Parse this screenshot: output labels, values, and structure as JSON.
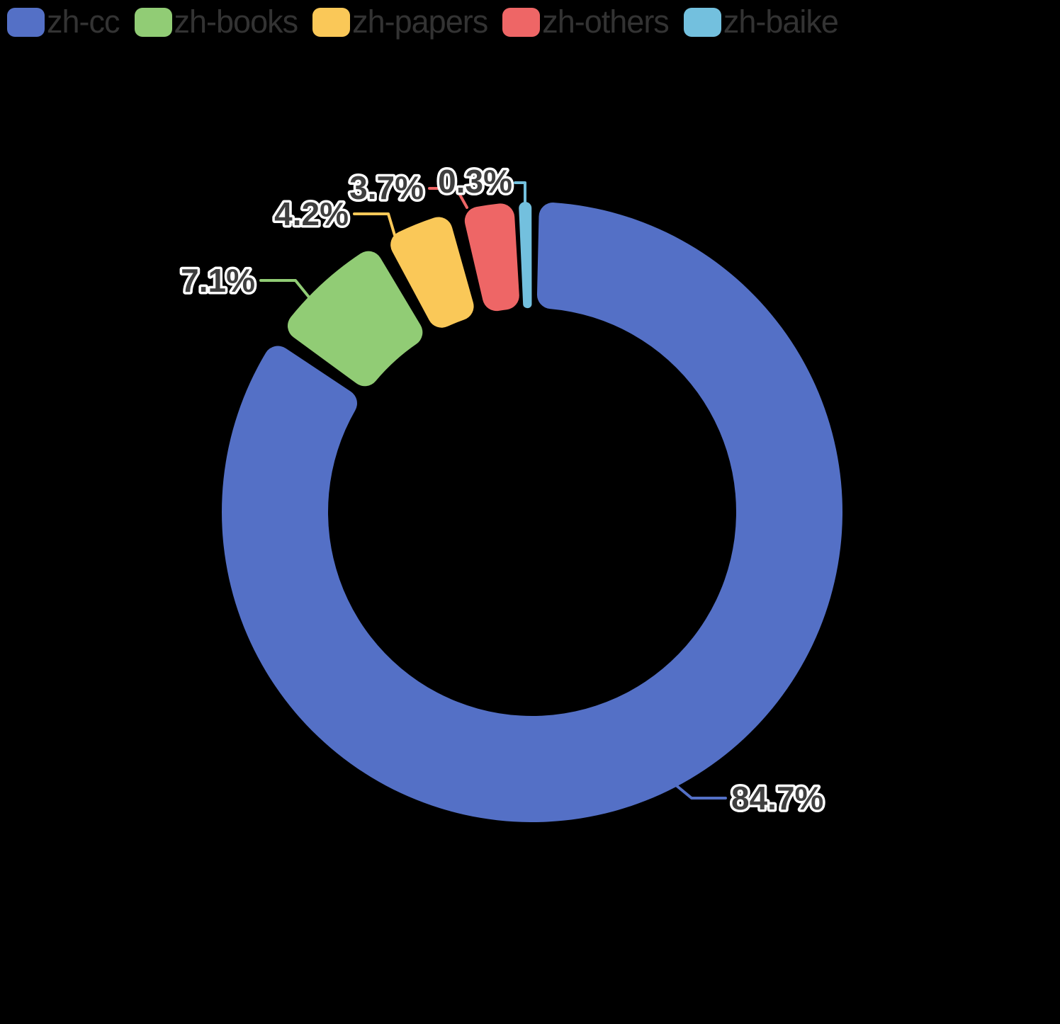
{
  "background": "#000000",
  "legend": {
    "position": "top-left",
    "items": [
      {
        "label": "zh-cc",
        "color": "#5470C6"
      },
      {
        "label": "zh-books",
        "color": "#91CC75"
      },
      {
        "label": "zh-papers",
        "color": "#FAC858"
      },
      {
        "label": "zh-others",
        "color": "#EE6666"
      },
      {
        "label": "zh-baike",
        "color": "#73C0DE"
      }
    ]
  },
  "chart_data": {
    "type": "pie",
    "subtype": "donut",
    "title": "",
    "categories": [
      "zh-cc",
      "zh-books",
      "zh-papers",
      "zh-others",
      "zh-baike"
    ],
    "values": [
      84.7,
      7.1,
      4.2,
      3.7,
      0.3
    ],
    "data_labels": [
      "84.7%",
      "7.1%",
      "4.2%",
      "3.7%",
      "0.3%"
    ],
    "unit": "%",
    "colors": [
      "#5470C6",
      "#91CC75",
      "#FAC858",
      "#EE6666",
      "#73C0DE"
    ],
    "legend_position": "top-left",
    "start_angle_deg": 90,
    "clockwise": true,
    "inner_radius_ratio": 0.66,
    "rounded_corners": true,
    "pad_angle_deg": 2.6,
    "label_text_color": "#3f3f3f",
    "label_outline_color": "#ffffff",
    "legend_text_color": "#333333"
  }
}
